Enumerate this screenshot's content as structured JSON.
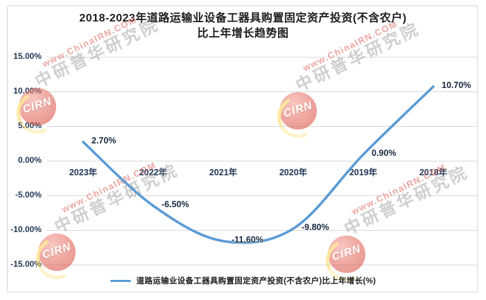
{
  "title": {
    "line1": "2018-2023年道路运输业设备工器具购置固定资产投资(不含农户)",
    "line2": "比上年增长趋势图"
  },
  "chart_data": {
    "type": "line",
    "title": "2018-2023年道路运输业设备工器具购置固定资产投资(不含农户)比上年增长趋势图",
    "categories": [
      "2023年",
      "2022年",
      "2021年",
      "2020年",
      "2019年",
      "2018年"
    ],
    "series": [
      {
        "name": "道路运输业设备工器具购置固定资产投资(不含农户)比上年增长(%)",
        "values": [
          2.7,
          -6.5,
          -11.6,
          -9.8,
          0.9,
          10.7
        ],
        "point_labels": [
          "2.70%",
          "-6.50%",
          "-11.60%",
          "-9.80%",
          "0.90%",
          "10.70%"
        ]
      }
    ],
    "smooth": true,
    "xlabel": "",
    "ylabel": "",
    "ylim": [
      -15,
      15
    ],
    "ytick_step": 5,
    "ytick_labels": [
      "15.00%",
      "10.00%",
      "5.00%",
      "0.00%",
      "-5.00%",
      "-10.00%",
      "-15.00%"
    ],
    "yticks": [
      15,
      10,
      5,
      0,
      -5,
      -10,
      -15
    ],
    "grid": "horizontal",
    "legend_position": "bottom"
  },
  "legend": {
    "label": "道路运输业设备工器具购置固定资产投资(不含农户)比上年增长(%)"
  },
  "watermark": {
    "logo_text": "CIRN",
    "url_text": "www.ChinaIRN.COM",
    "brand_text": "中研普华研究院"
  },
  "colors": {
    "line": "#5b9bd5",
    "grid": "#d9d9d9",
    "frame": "#d9d9d9",
    "axis_text": "#1f3656",
    "label_text": "#16283f",
    "title_text": "#1c1c1c"
  }
}
